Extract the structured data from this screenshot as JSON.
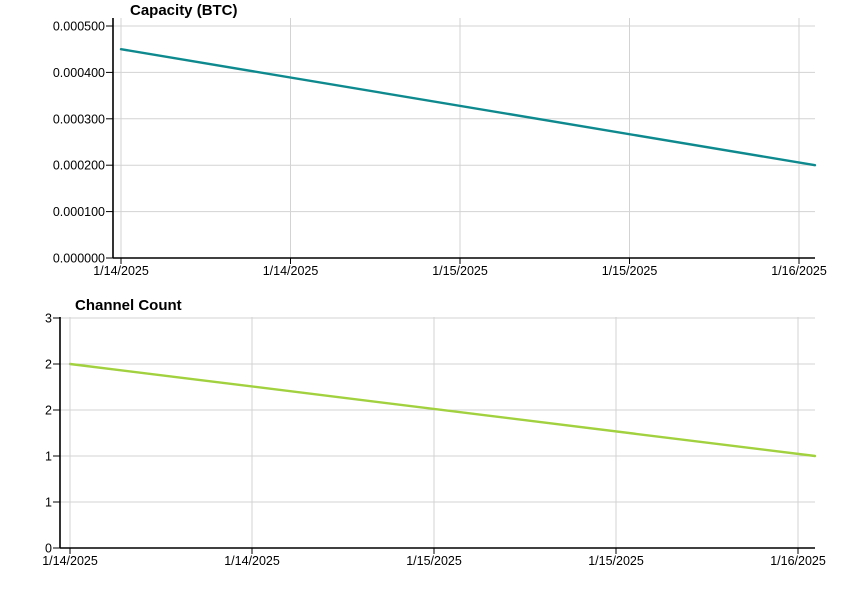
{
  "page": {
    "background_color": "#ffffff",
    "text_color": "#000000",
    "gridline_color": "#d3d3d3",
    "axis_color": "#000000"
  },
  "chart_data": [
    {
      "type": "line",
      "title": "Capacity (BTC)",
      "xlabel": "",
      "ylabel": "",
      "x_tick_labels": [
        "1/14/2025",
        "1/14/2025",
        "1/15/2025",
        "1/15/2025",
        "1/16/2025"
      ],
      "y_ticks": [
        {
          "value": 0.0005,
          "label": "0.000500"
        },
        {
          "value": 0.0004,
          "label": "0.000400"
        },
        {
          "value": 0.0003,
          "label": "0.000300"
        },
        {
          "value": 0.0002,
          "label": "0.000200"
        },
        {
          "value": 0.0001,
          "label": "0.000100"
        },
        {
          "value": 0.0,
          "label": "0.000000"
        }
      ],
      "ylim": [
        0,
        0.0005
      ],
      "grid": true,
      "legend": "none",
      "series": [
        {
          "name": "Capacity (BTC)",
          "color": "#0e8a8f",
          "points": [
            {
              "x": "1/14/2025",
              "x_frac": 0,
              "value": 0.00045
            },
            {
              "x": "1/16/2025",
              "x_frac": 1,
              "value": 0.0002
            }
          ]
        }
      ]
    },
    {
      "type": "line",
      "title": "Channel Count",
      "xlabel": "",
      "ylabel": "",
      "x_tick_labels": [
        "1/14/2025",
        "1/14/2025",
        "1/15/2025",
        "1/15/2025",
        "1/16/2025"
      ],
      "y_ticks": [
        {
          "value": 2.5,
          "label": "3"
        },
        {
          "value": 2.0,
          "label": "2"
        },
        {
          "value": 1.5,
          "label": "2"
        },
        {
          "value": 1.0,
          "label": "1"
        },
        {
          "value": 0.5,
          "label": "1"
        },
        {
          "value": 0.0,
          "label": "0"
        }
      ],
      "ylim": [
        0,
        2.5
      ],
      "grid": true,
      "legend": "none",
      "series": [
        {
          "name": "Channel Count",
          "color": "#a2d13f",
          "points": [
            {
              "x": "1/14/2025",
              "x_frac": 0,
              "value": 2
            },
            {
              "x": "1/16/2025",
              "x_frac": 1,
              "value": 1
            }
          ]
        }
      ]
    }
  ]
}
